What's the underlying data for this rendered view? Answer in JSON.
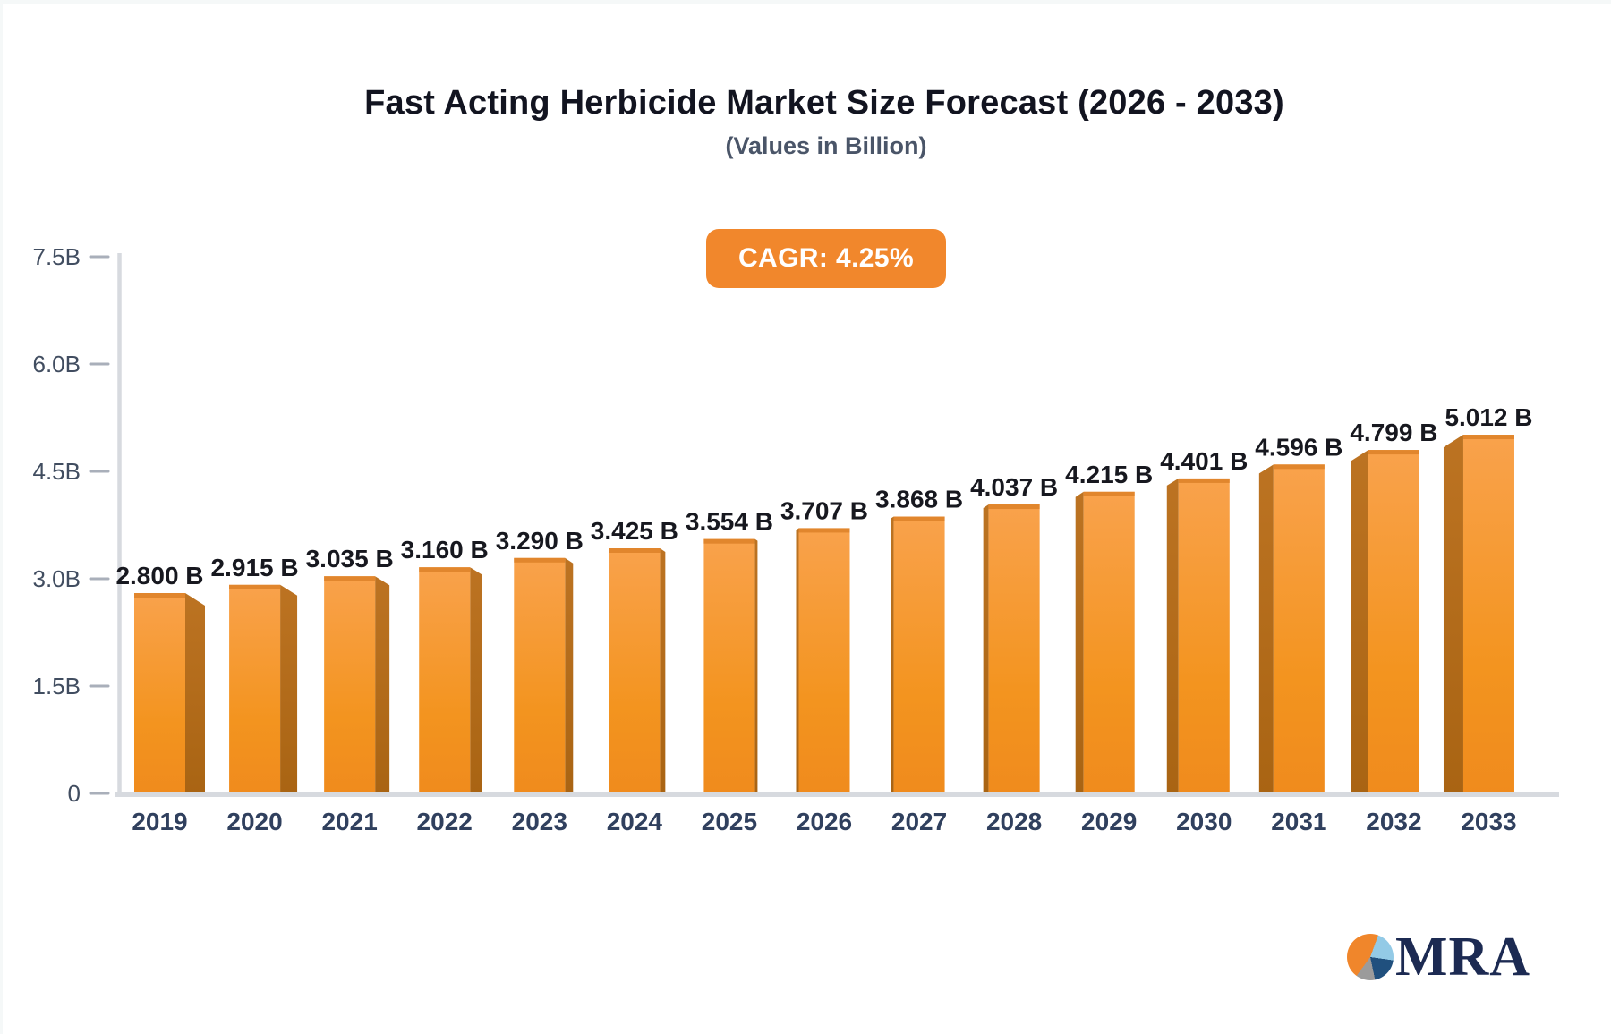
{
  "header": {
    "title": "Fast Acting Herbicide Market Size Forecast (2026 - 2033)",
    "subtitle": "(Values in Billion)"
  },
  "badge": {
    "label": "CAGR: 4.25%",
    "bg_color": "#F1872C",
    "text_color": "#FFFFFF"
  },
  "logo": {
    "text": "MRA",
    "pie_colors": [
      "#F0862B",
      "#93CAE6",
      "#20507E",
      "#9B9B9B"
    ],
    "text_color": "#1C2A52"
  },
  "chart_data": {
    "type": "bar",
    "title": "Fast Acting Herbicide Market Size Forecast (2026 - 2033)",
    "subtitle": "(Values in Billion)",
    "categories": [
      "2019",
      "2020",
      "2021",
      "2022",
      "2023",
      "2024",
      "2025",
      "2026",
      "2027",
      "2028",
      "2029",
      "2030",
      "2031",
      "2032",
      "2033"
    ],
    "values": [
      2.8,
      2.915,
      3.035,
      3.16,
      3.29,
      3.425,
      3.554,
      3.707,
      3.868,
      4.037,
      4.215,
      4.401,
      4.596,
      4.799,
      5.012
    ],
    "value_labels": [
      "2.800 B",
      "2.915 B",
      "3.035 B",
      "3.160 B",
      "3.290 B",
      "3.425 B",
      "3.554 B",
      "3.707 B",
      "3.868 B",
      "4.037 B",
      "4.215 B",
      "4.401 B",
      "4.596 B",
      "4.799 B",
      "5.012 B"
    ],
    "xlabel": "",
    "ylabel": "",
    "ylim": [
      0,
      7.5
    ],
    "ytick_values": [
      0,
      1.5,
      3.0,
      4.5,
      6.0,
      7.5
    ],
    "ytick_labels": [
      "0",
      "1.5B",
      "3.0B",
      "4.5B",
      "6.0B",
      "7.5B"
    ],
    "grid": false,
    "legend": false,
    "cagr": "4.25%",
    "colors": {
      "bar_front_top": "#F9A24C",
      "bar_front_bottom": "#F08B1D",
      "bar_side": "#B26A19",
      "bar_top_band": "#E1862D",
      "axis_line": "#D7DADF",
      "tick_dash": "#A9AFBA",
      "value_label": "#17181F",
      "year_label": "#30405E",
      "ytick_label": "#414D60"
    }
  }
}
